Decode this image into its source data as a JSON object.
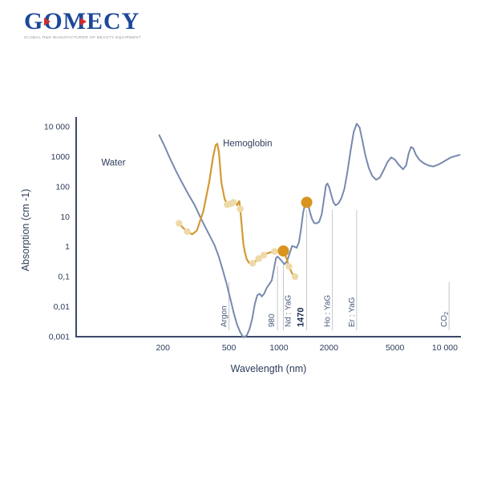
{
  "logo": {
    "text": "GOMECY",
    "tagline": "GLOBAL R&D MANUFACTURER OF BEAUTY EQUIPMENT",
    "brand_color": "#1c4899",
    "accent_color": "#d42b2b"
  },
  "chart_data": {
    "type": "line",
    "title": "",
    "xlabel": "Wavelength (nm)",
    "ylabel": "Absorption (cm -1)",
    "x_scale": "log",
    "y_scale": "log",
    "xlim": [
      60,
      12500
    ],
    "ylim": [
      0.001,
      10000
    ],
    "grid": false,
    "legend_position": "none",
    "x_ticks": [
      {
        "value": 200,
        "label": "200"
      },
      {
        "value": 500,
        "label": "500"
      },
      {
        "value": 1000,
        "label": "1000"
      },
      {
        "value": 2000,
        "label": "2000"
      },
      {
        "value": 5000,
        "label": "5000"
      },
      {
        "value": 10000,
        "label": "10 000"
      }
    ],
    "y_ticks": [
      {
        "value": 10000,
        "label": "10 000"
      },
      {
        "value": 1000,
        "label": "1000"
      },
      {
        "value": 100,
        "label": "100"
      },
      {
        "value": 10,
        "label": "10"
      },
      {
        "value": 1,
        "label": "1"
      },
      {
        "value": 0.1,
        "label": "0,1"
      },
      {
        "value": 0.01,
        "label": "0,01"
      },
      {
        "value": 0.001,
        "label": "0,001"
      }
    ],
    "colors": {
      "axis": "#3a4a68",
      "tick_label": "#2e3d5c",
      "axis_title": "#2e3d5c",
      "water_curve": "#7789ad",
      "hemoglobin_curve": "#d39a33",
      "small_marker": "#eed9a8",
      "large_marker": "#d9941f",
      "ref_line": "#c4c6cb",
      "ref_label": "#46587a",
      "ref_label_bold": "#16294e",
      "annotation": "#2e3d5c"
    },
    "series": [
      {
        "name": "Water",
        "color_key": "water_curve",
        "width": 2,
        "points": [
          [
            190,
            5200
          ],
          [
            205,
            2200
          ],
          [
            220,
            900
          ],
          [
            240,
            330
          ],
          [
            260,
            140
          ],
          [
            285,
            55
          ],
          [
            310,
            25
          ],
          [
            335,
            10
          ],
          [
            360,
            4.5
          ],
          [
            385,
            2.2
          ],
          [
            410,
            1.1
          ],
          [
            435,
            0.45
          ],
          [
            460,
            0.16
          ],
          [
            485,
            0.055
          ],
          [
            510,
            0.018
          ],
          [
            535,
            0.006
          ],
          [
            560,
            0.0025
          ],
          [
            585,
            0.0014
          ],
          [
            610,
            0.00095
          ],
          [
            640,
            0.0011
          ],
          [
            665,
            0.0018
          ],
          [
            690,
            0.004
          ],
          [
            715,
            0.012
          ],
          [
            740,
            0.024
          ],
          [
            765,
            0.027
          ],
          [
            790,
            0.022
          ],
          [
            815,
            0.027
          ],
          [
            845,
            0.043
          ],
          [
            875,
            0.056
          ],
          [
            905,
            0.075
          ],
          [
            935,
            0.19
          ],
          [
            960,
            0.42
          ],
          [
            980,
            0.47
          ],
          [
            1005,
            0.41
          ],
          [
            1040,
            0.33
          ],
          [
            1080,
            0.26
          ],
          [
            1120,
            0.33
          ],
          [
            1160,
            0.6
          ],
          [
            1200,
            1.05
          ],
          [
            1240,
            1.0
          ],
          [
            1280,
            0.92
          ],
          [
            1320,
            1.4
          ],
          [
            1360,
            4
          ],
          [
            1400,
            14
          ],
          [
            1440,
            27
          ],
          [
            1470,
            30
          ],
          [
            1500,
            26
          ],
          [
            1540,
            14
          ],
          [
            1580,
            8.5
          ],
          [
            1630,
            6.2
          ],
          [
            1690,
            6
          ],
          [
            1750,
            6.8
          ],
          [
            1810,
            12
          ],
          [
            1870,
            40
          ],
          [
            1920,
            110
          ],
          [
            1960,
            128
          ],
          [
            2010,
            95
          ],
          [
            2070,
            52
          ],
          [
            2130,
            30
          ],
          [
            2200,
            24
          ],
          [
            2290,
            28
          ],
          [
            2380,
            42
          ],
          [
            2480,
            85
          ],
          [
            2580,
            280
          ],
          [
            2700,
            1500
          ],
          [
            2820,
            6500
          ],
          [
            2940,
            12500
          ],
          [
            3060,
            9500
          ],
          [
            3180,
            3600
          ],
          [
            3320,
            1100
          ],
          [
            3480,
            420
          ],
          [
            3650,
            230
          ],
          [
            3850,
            170
          ],
          [
            4050,
            200
          ],
          [
            4250,
            330
          ],
          [
            4500,
            650
          ],
          [
            4750,
            950
          ],
          [
            5000,
            800
          ],
          [
            5300,
            520
          ],
          [
            5600,
            380
          ],
          [
            5850,
            520
          ],
          [
            6050,
            1300
          ],
          [
            6250,
            2100
          ],
          [
            6450,
            1900
          ],
          [
            6700,
            1150
          ],
          [
            7000,
            800
          ],
          [
            7400,
            620
          ],
          [
            7900,
            520
          ],
          [
            8500,
            470
          ],
          [
            9100,
            540
          ],
          [
            9700,
            650
          ],
          [
            10300,
            800
          ],
          [
            10900,
            950
          ],
          [
            11600,
            1050
          ],
          [
            12300,
            1150
          ]
        ]
      },
      {
        "name": "Hemoglobin",
        "color_key": "hemoglobin_curve",
        "width": 2.2,
        "points": [
          [
            250,
            6
          ],
          [
            265,
            4.2
          ],
          [
            280,
            3.2
          ],
          [
            300,
            2.6
          ],
          [
            320,
            3.4
          ],
          [
            350,
            15
          ],
          [
            380,
            140
          ],
          [
            400,
            900
          ],
          [
            415,
            2400
          ],
          [
            425,
            2700
          ],
          [
            435,
            1400
          ],
          [
            450,
            140
          ],
          [
            470,
            40
          ],
          [
            488,
            25
          ],
          [
            500,
            23
          ],
          [
            514,
            27
          ],
          [
            525,
            24
          ],
          [
            532,
            30
          ],
          [
            545,
            33
          ],
          [
            560,
            24
          ],
          [
            570,
            30
          ],
          [
            577,
            33
          ],
          [
            585,
            18
          ],
          [
            598,
            4.5
          ],
          [
            610,
            1.3
          ],
          [
            622,
            0.7
          ],
          [
            640,
            0.38
          ],
          [
            660,
            0.29
          ],
          [
            680,
            0.27
          ],
          [
            694,
            0.28
          ],
          [
            715,
            0.31
          ],
          [
            735,
            0.36
          ],
          [
            755,
            0.4
          ],
          [
            780,
            0.46
          ],
          [
            810,
            0.52
          ],
          [
            850,
            0.6
          ],
          [
            880,
            0.64
          ],
          [
            910,
            0.67
          ],
          [
            940,
            0.69
          ],
          [
            970,
            0.72
          ],
          [
            1000,
            0.74
          ],
          [
            1030,
            0.74
          ],
          [
            1064,
            0.72
          ],
          [
            1090,
            0.55
          ],
          [
            1120,
            0.35
          ],
          [
            1150,
            0.22
          ],
          [
            1200,
            0.13
          ],
          [
            1250,
            0.1
          ]
        ]
      }
    ],
    "markers": {
      "small": {
        "radius": 4.2,
        "color_key": "small_marker",
        "points": [
          [
            250,
            6
          ],
          [
            280,
            3.2
          ],
          [
            488,
            25
          ],
          [
            514,
            27
          ],
          [
            532,
            30
          ],
          [
            585,
            18
          ],
          [
            694,
            0.28
          ],
          [
            755,
            0.4
          ],
          [
            810,
            0.52
          ],
          [
            940,
            0.69
          ],
          [
            1150,
            0.22
          ],
          [
            1250,
            0.1
          ]
        ]
      },
      "large": {
        "radius": 7,
        "color_key": "large_marker",
        "points": [
          [
            1064,
            0.72
          ],
          [
            1470,
            30
          ]
        ]
      }
    },
    "reference_lines": [
      {
        "wavelength": 500,
        "label": "Argon",
        "bold": false,
        "line_top": 352,
        "label_dx": -3
      },
      {
        "wavelength": 980,
        "label": "980",
        "bold": false,
        "line_top": 332,
        "label_dx": -4
      },
      {
        "wavelength": 1064,
        "label": "Nd : YaG",
        "bold": false,
        "line_top": 330,
        "label_dx": 9
      },
      {
        "wavelength": 1470,
        "label": "1470",
        "bold": true,
        "line_top": 262,
        "label_dx": -4
      },
      {
        "wavelength": 2100,
        "label": "Ho : YaG",
        "bold": false,
        "line_top": 262,
        "label_dx": -3
      },
      {
        "wavelength": 2940,
        "label": "Er : YaG",
        "bold": false,
        "line_top": 262,
        "label_dx": -3
      },
      {
        "wavelength": 10600,
        "label": "CO",
        "subscript": "2",
        "bold": false,
        "line_top": 352,
        "label_dx": -3
      }
    ],
    "annotations": [
      {
        "text": "Water",
        "x": 85,
        "y": 500
      },
      {
        "text": "Hemoglobin",
        "x": 460,
        "y": 2200
      }
    ]
  }
}
